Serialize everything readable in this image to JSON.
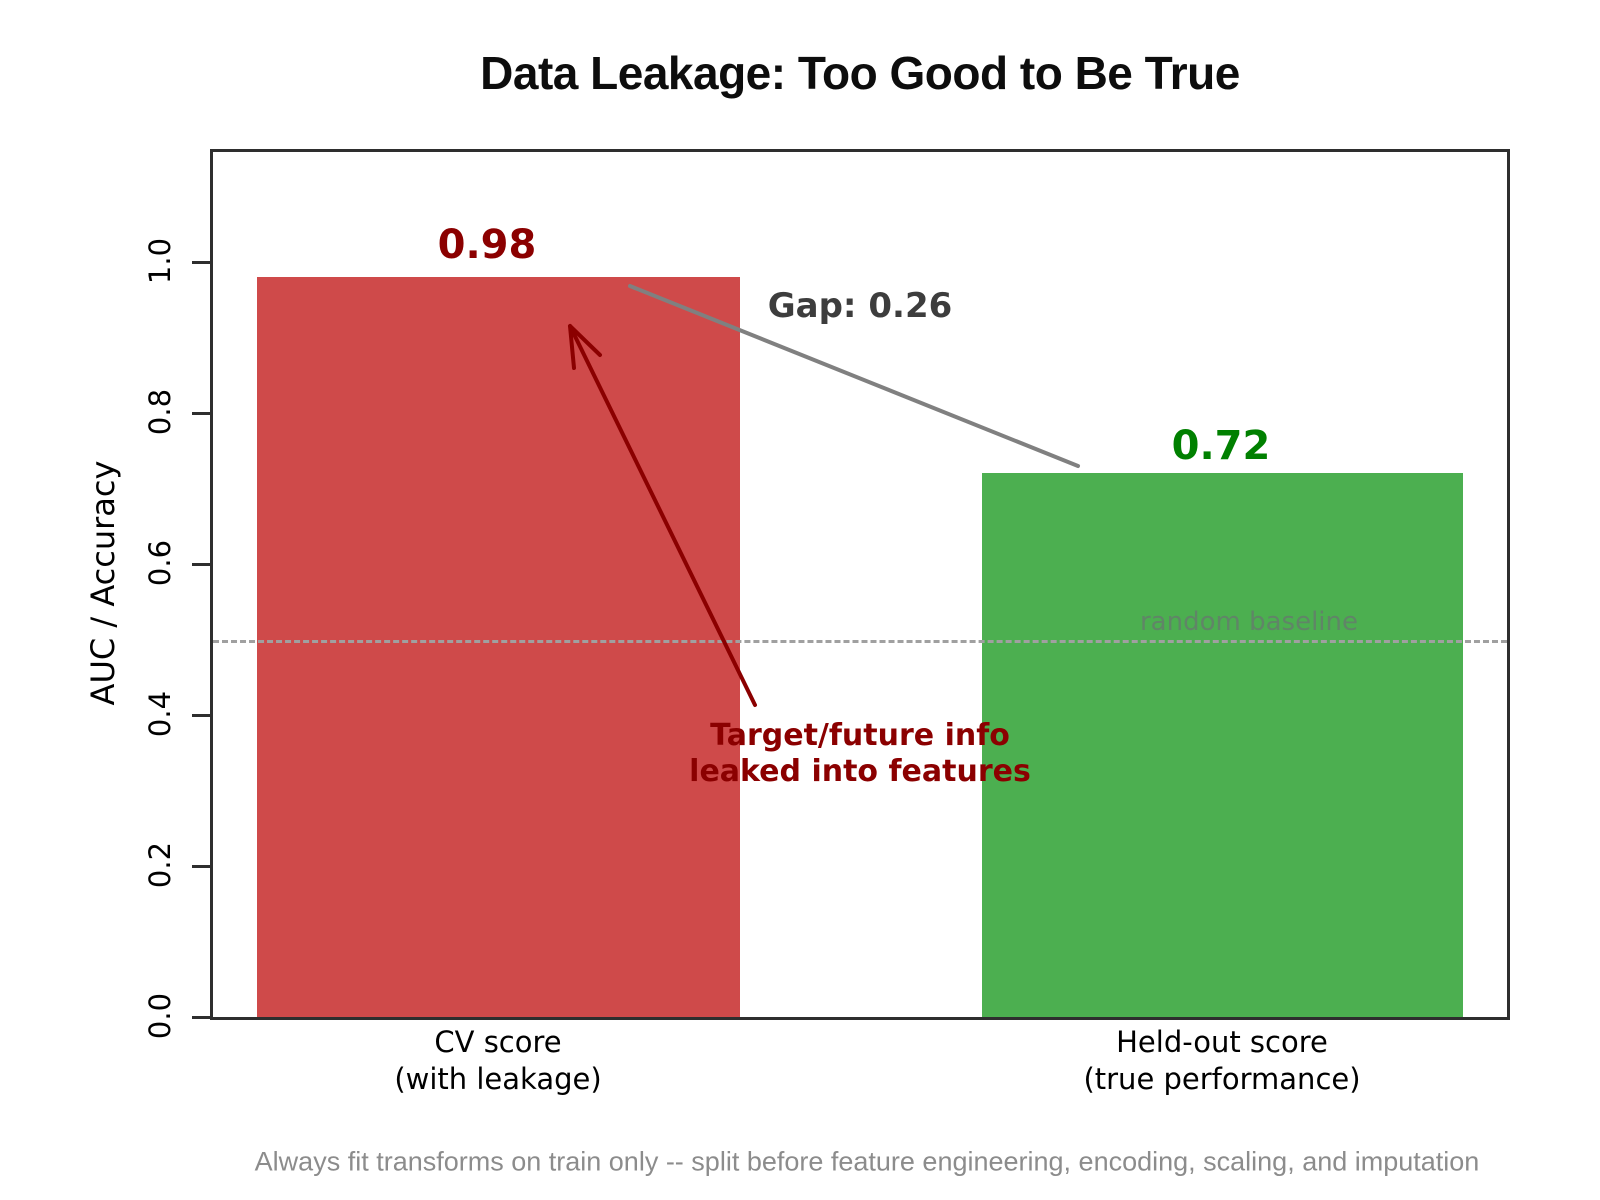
{
  "title": "Data Leakage: Too Good to Be True",
  "caption": "Always fit transforms on train only -- split before feature engineering, encoding, scaling, and imputation",
  "colors": {
    "bar_leakage": "#cf4a4a",
    "bar_heldout": "#4caf50",
    "value_leakage": "#8b0000",
    "value_heldout": "#008000",
    "gap_text": "#3d3d3d",
    "connector_line": "#808080",
    "arrow": "#8b0000",
    "baseline_line": "#a0a0a0",
    "caption_text": "#8c8c8c",
    "axis_text": "#000000"
  },
  "chart_data": {
    "type": "bar",
    "title": "Data Leakage: Too Good to Be True",
    "xlabel": "",
    "ylabel": "AUC / Accuracy",
    "ylim": [
      0,
      1.15
    ],
    "grid": false,
    "legend": "none",
    "yticks": [
      "0.0",
      "0.2",
      "0.4",
      "0.6",
      "0.8",
      "1.0"
    ],
    "categories": [
      "CV score (with leakage)",
      "Held-out score (true performance)"
    ],
    "category_lines": [
      {
        "line1": "CV score",
        "line2": "(with leakage)"
      },
      {
        "line1": "Held-out score",
        "line2": "(true performance)"
      }
    ],
    "values": [
      0.98,
      0.72
    ],
    "value_labels": [
      "0.98",
      "0.72"
    ],
    "bar_colors": [
      "#cf4a4a",
      "#4caf50"
    ],
    "baseline": {
      "value": 0.5,
      "label": "random baseline",
      "style": "dotted"
    },
    "annotations": {
      "gap": "Gap: 0.26",
      "leak_line1": "Target/future info",
      "leak_line2": "leaked into features"
    }
  }
}
